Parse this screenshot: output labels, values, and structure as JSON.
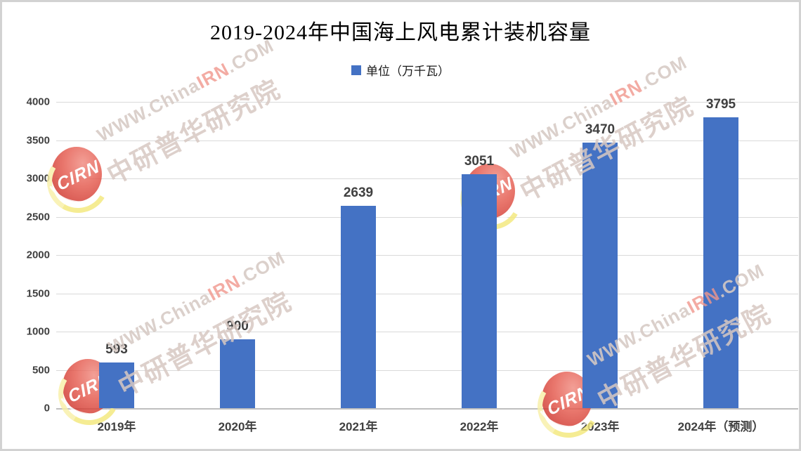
{
  "title": "2019-2024年中国海上风电累计装机容量",
  "legend": {
    "label": "单位（万千瓦）",
    "swatch_color": "#4472C4"
  },
  "chart_data": {
    "type": "bar",
    "title": "2019-2024年中国海上风电累计装机容量",
    "categories": [
      "2019年",
      "2020年",
      "2021年",
      "2022年",
      "2023年",
      "2024年（预测）"
    ],
    "values": [
      593,
      900,
      2639,
      3051,
      3470,
      3795
    ],
    "series_name": "单位（万千瓦）",
    "ylim": [
      0,
      4000
    ],
    "yticks": [
      0,
      500,
      1000,
      1500,
      2000,
      2500,
      3000,
      3500,
      4000
    ],
    "grid": true,
    "legend_position": "top-center",
    "bar_color": "#4472C4",
    "label_color": "#404040",
    "gridline_color": "#d9d9d9"
  },
  "watermark": {
    "site_prefix": "WWW.China",
    "site_highlight": "IRN",
    "site_suffix": ".COM",
    "org_text": "中研普华研究院",
    "logo_text": "CIRN",
    "highlight_color": "#f0968c"
  }
}
